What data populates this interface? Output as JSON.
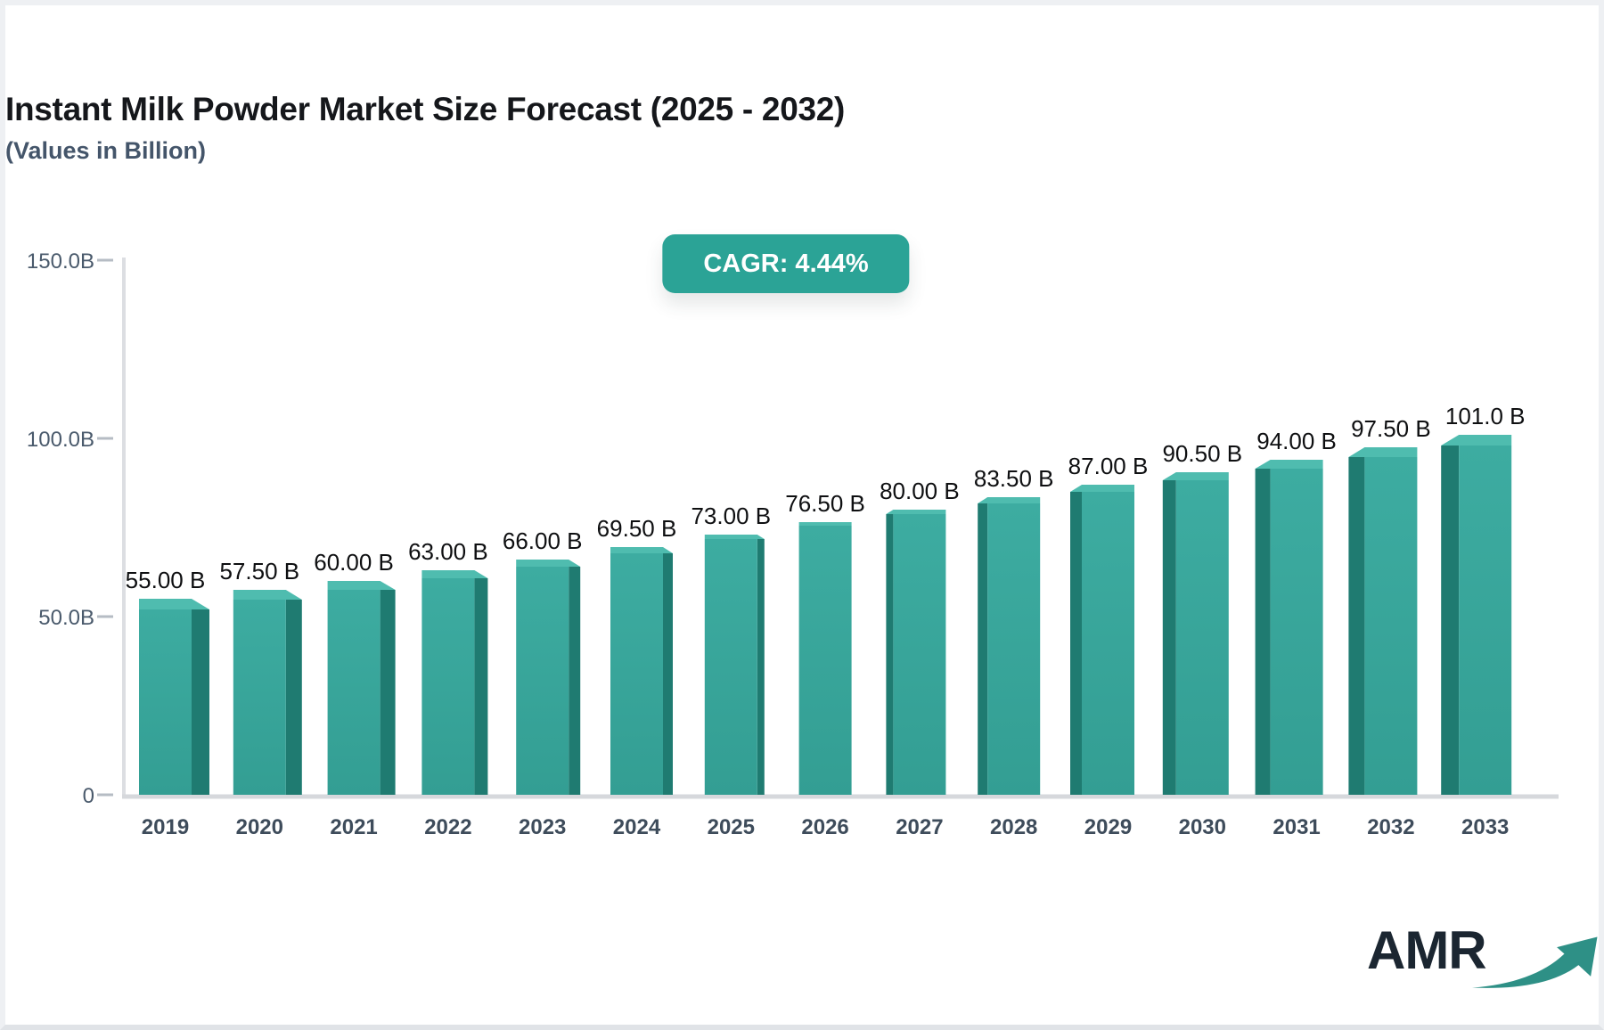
{
  "title": "Instant Milk Powder Market Size Forecast (2025 - 2032)",
  "subtitle": "(Values in Billion)",
  "badge": {
    "label": "CAGR: 4.44%"
  },
  "logo": {
    "text": "AMR",
    "arrow_icon": "growth-arrow-icon"
  },
  "colors": {
    "title": "#15171b",
    "subtitle": "#44556a",
    "badge_bg": "#2ba396",
    "bar_face": "#3daca1",
    "bar_face_dark": "#339e93",
    "bar_side": "#1f7b71",
    "bar_top": "#4fbcaf",
    "axis_line": "#dcdee2",
    "baseline": "#d6d8dc",
    "tick_dash": "#b6bcc4",
    "tick_text": "#4a5a6c",
    "year_text": "#3e4c5b",
    "value_text": "#0e0f11",
    "logo_text": "#1b2631",
    "logo_arrow": "#2e9086"
  },
  "chart_data": {
    "type": "bar",
    "title": "Instant Milk Powder Market Size Forecast (2025 - 2032)",
    "subtitle": "(Values in Billion)",
    "unit": "Billion",
    "cagr": "4.44%",
    "categories": [
      "2019",
      "2020",
      "2021",
      "2022",
      "2023",
      "2024",
      "2025",
      "2026",
      "2027",
      "2028",
      "2029",
      "2030",
      "2031",
      "2032",
      "2033"
    ],
    "values": [
      55.0,
      57.5,
      60.0,
      63.0,
      66.0,
      69.5,
      73.0,
      76.5,
      80.0,
      83.5,
      87.0,
      90.5,
      94.0,
      97.5,
      101.0
    ],
    "value_labels": [
      "55.00 B",
      "57.50 B",
      "60.00 B",
      "63.00 B",
      "66.00 B",
      "69.50 B",
      "73.00 B",
      "76.50 B",
      "80.00 B",
      "83.50 B",
      "87.00 B",
      "90.50 B",
      "94.00 B",
      "97.50 B",
      "101.0 B"
    ],
    "ylabel": "",
    "xlabel": "",
    "ylim": [
      0,
      150
    ],
    "yticks": [
      {
        "value": 0,
        "label": "0"
      },
      {
        "value": 50,
        "label": "50.0B"
      },
      {
        "value": 100,
        "label": "100.0B"
      },
      {
        "value": 150,
        "label": "150.0B"
      }
    ],
    "grid": false,
    "legend": "none",
    "style": "3d-perspective-bars"
  }
}
